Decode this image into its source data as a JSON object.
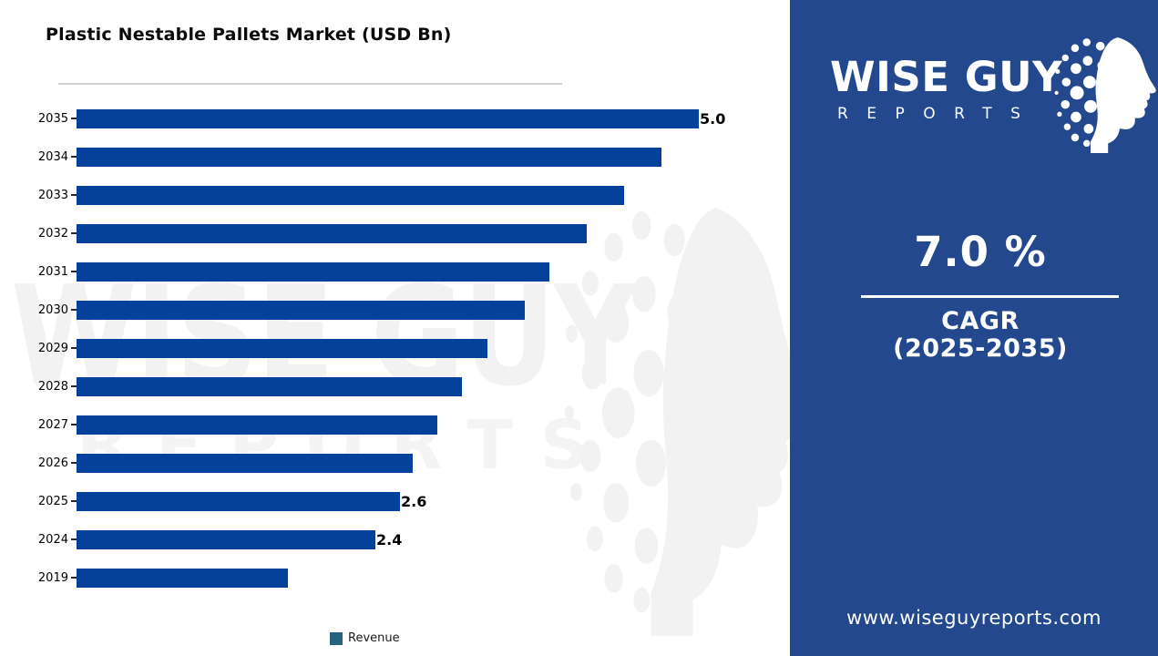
{
  "chart_data": {
    "type": "bar",
    "orientation": "horizontal",
    "title": "Plastic Nestable Pallets Market (USD Bn)",
    "categories": [
      "2035",
      "2034",
      "2033",
      "2032",
      "2031",
      "2030",
      "2029",
      "2028",
      "2027",
      "2026",
      "2025",
      "2024",
      "2019"
    ],
    "values": [
      5.0,
      4.7,
      4.4,
      4.1,
      3.8,
      3.6,
      3.3,
      3.1,
      2.9,
      2.7,
      2.6,
      2.4,
      1.7
    ],
    "bar_value_labels": [
      "5.0",
      "",
      "",
      "",
      "",
      "",
      "",
      "",
      "",
      "",
      "2.6",
      "2.4",
      ""
    ],
    "xlim": [
      0,
      5.0
    ],
    "xlabel": "",
    "ylabel": "",
    "grid": false,
    "bar_color": "#05419b",
    "legend": {
      "entries": [
        "Revenue"
      ],
      "position": "bottom-center",
      "swatch_color": "#256480"
    }
  },
  "watermark": {
    "line1": "WISE GUY",
    "line2": "REPORTS"
  },
  "side_panel": {
    "background_color": "#23488d",
    "logo_line1": "WISE GUY",
    "logo_line2": "REPORTS",
    "cagr_value": "7.0 %",
    "cagr_label": "CAGR",
    "cagr_period": "(2025-2035)",
    "website": "www.wiseguyreports.com"
  }
}
